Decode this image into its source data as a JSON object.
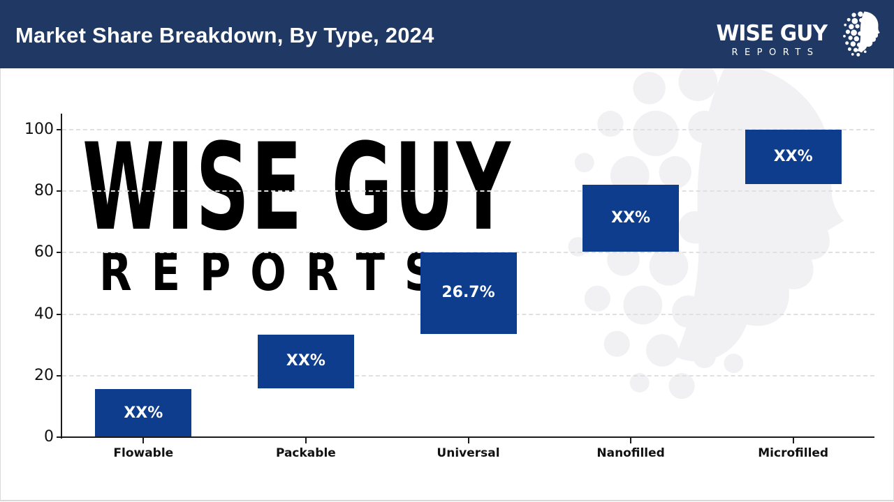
{
  "header": {
    "title": "Market Share Breakdown, By Type, 2024",
    "logo": {
      "line1": "WISE GUY",
      "line2": "REPORTS"
    }
  },
  "watermark": {
    "line1": "WISE GUY",
    "line2": "REPORTS"
  },
  "chart_data": {
    "type": "bar",
    "variant": "floating-waterfall",
    "title": "Market Share Breakdown, By Type, 2024",
    "categories": [
      "Flowable",
      "Packable",
      "Universal",
      "Nanofilled",
      "Microfilled"
    ],
    "bars": [
      {
        "category": "Flowable",
        "start": 0,
        "end": 15.6,
        "label": "XX%"
      },
      {
        "category": "Packable",
        "start": 15.9,
        "end": 33.4,
        "label": "XX%"
      },
      {
        "category": "Universal",
        "start": 33.5,
        "end": 60.2,
        "label": "26.7%"
      },
      {
        "category": "Nanofilled",
        "start": 60.3,
        "end": 82.0,
        "label": "XX%"
      },
      {
        "category": "Microfilled",
        "start": 82.2,
        "end": 100,
        "label": "XX%"
      }
    ],
    "xlabel": "",
    "ylabel": "",
    "yticks": [
      0,
      20,
      40,
      60,
      80,
      100
    ],
    "ylim": [
      0,
      105
    ],
    "grid": {
      "horizontal": true,
      "style": "dashed"
    },
    "legend": null,
    "colors": {
      "bar": "#0d3d8c",
      "bar_label": "#ffffff",
      "header_bg": "#1f3864",
      "header_text": "#ffffff",
      "gridline": "#e0e0e0",
      "axis": "#1a1a1a",
      "watermark": "#f1f1f4"
    }
  }
}
